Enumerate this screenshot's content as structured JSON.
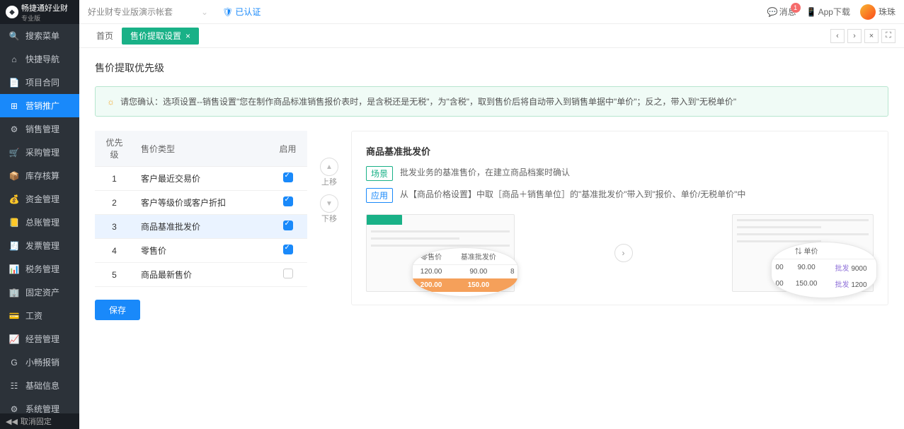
{
  "logo": {
    "brand": "畅捷通好业财",
    "edition": "专业版"
  },
  "topbar": {
    "account": "好业财专业版演示帐套",
    "verified": "已认证",
    "msg_label": "消息",
    "msg_count": "1",
    "app_dl": "App下载",
    "user": "珠珠"
  },
  "tabs": {
    "home": "首页",
    "active": "售价提取设置"
  },
  "nav": {
    "items": [
      "搜索菜单",
      "快捷导航",
      "项目合同",
      "营销推广",
      "销售管理",
      "采购管理",
      "库存核算",
      "资金管理",
      "总账管理",
      "发票管理",
      "税务管理",
      "固定资产",
      "工资",
      "经营管理",
      "小畅报销",
      "基础信息",
      "系统管理"
    ],
    "active_index": 3,
    "pin": "取消固定"
  },
  "page": {
    "title": "售价提取优先级",
    "notice": "请您确认：选项设置--销售设置\"您在制作商品标准销售报价表时，是含税还是无税\"，为\"含税\"，取到售价后将自动带入到销售单据中\"单价\"；反之，带入到\"无税单价\""
  },
  "table": {
    "cols": {
      "priority": "优先级",
      "type": "售价类型",
      "enable": "启用"
    },
    "rows": [
      {
        "n": "1",
        "type": "客户最近交易价",
        "on": true,
        "sel": false
      },
      {
        "n": "2",
        "type": "客户等级价或客户折扣",
        "on": true,
        "sel": false
      },
      {
        "n": "3",
        "type": "商品基准批发价",
        "on": true,
        "sel": true
      },
      {
        "n": "4",
        "type": "零售价",
        "on": true,
        "sel": false
      },
      {
        "n": "5",
        "type": "商品最新售价",
        "on": false,
        "sel": false
      }
    ],
    "save": "保存",
    "up": "上移",
    "down": "下移"
  },
  "detail": {
    "title": "商品基准批发价",
    "scene_tag": "场景",
    "scene_text": "批发业务的基准售价，在建立商品档案时确认",
    "apply_tag": "应用",
    "apply_text": "从【商品价格设置】中取［商品＋销售单位］的\"基准批发价\"带入到\"报价、单价/无税单价\"中",
    "left_cols": {
      "a": "零售价",
      "b": "基准批发价"
    },
    "left_r1": {
      "a": "120.00",
      "b": "90.00"
    },
    "left_r2": {
      "a": "200.00",
      "b": "150.00"
    },
    "right_col": "单价",
    "right_r1": {
      "a": "90.00",
      "b": "批发",
      "c": "9000"
    },
    "right_r2": {
      "a": "150.00",
      "b": "批发",
      "c": "1200"
    }
  },
  "colors": {
    "sidebar": "#2c3239",
    "primary": "#1989fa",
    "accent_green": "#19b187",
    "orange": "#f5a05a"
  }
}
